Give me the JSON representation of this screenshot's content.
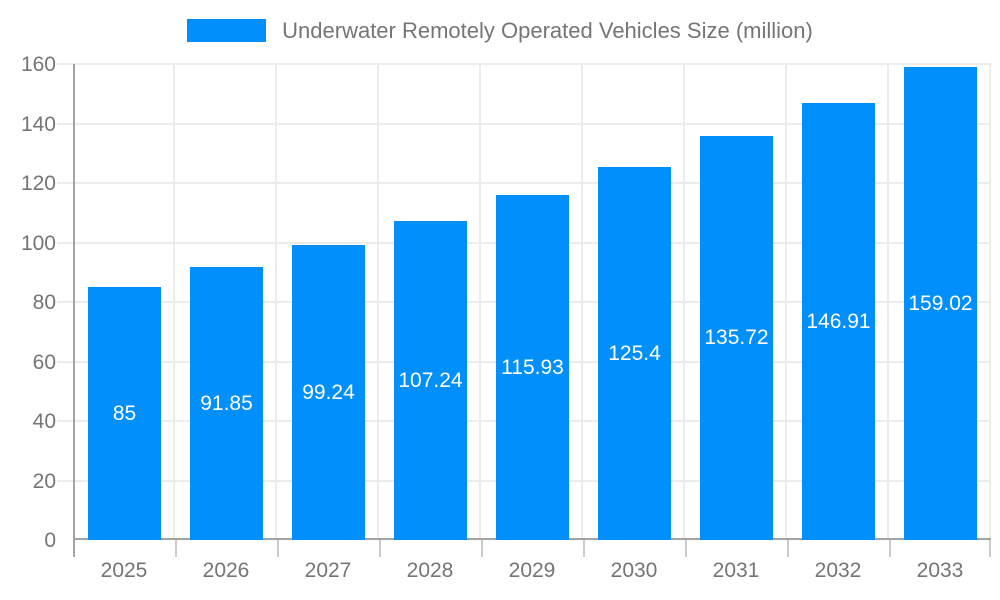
{
  "legend": {
    "label": "Underwater Remotely Operated Vehicles Size (million)"
  },
  "colors": {
    "bar": "#008FFB",
    "axis_label": "#757575",
    "grid_line": "#ECECEC",
    "axis_line": "#A3A3A3",
    "tick": "#CCCCCC",
    "value_label": "#FFFFFF",
    "background": "#FFFFFF"
  },
  "chart_data": {
    "type": "bar",
    "title": "Underwater Remotely Operated Vehicles Size (million)",
    "categories": [
      "2025",
      "2026",
      "2027",
      "2028",
      "2029",
      "2030",
      "2031",
      "2032",
      "2033"
    ],
    "values": [
      85,
      91.85,
      99.24,
      107.24,
      115.93,
      125.4,
      135.72,
      146.91,
      159.02
    ],
    "value_labels": [
      "85",
      "91.85",
      "99.24",
      "107.24",
      "115.93",
      "125.4",
      "135.72",
      "146.91",
      "159.02"
    ],
    "xlabel": "",
    "ylabel": "",
    "ylim": [
      0,
      160
    ],
    "yticks": [
      0,
      20,
      40,
      60,
      80,
      100,
      120,
      140,
      160
    ],
    "grid": true,
    "legend_position": "top",
    "value_label_position": "center"
  }
}
